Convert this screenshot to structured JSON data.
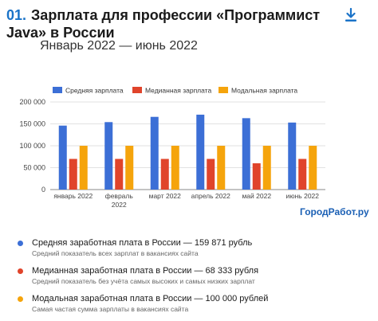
{
  "header": {
    "number": "01.",
    "title": "Зарплата для профессии «Программист Java» в России",
    "subtitle": "Январь 2022 — июнь 2022"
  },
  "icons": {
    "download": "download-icon"
  },
  "chart_data": {
    "type": "bar",
    "categories": [
      "январь 2022",
      "февраль 2022",
      "март 2022",
      "апрель 2022",
      "май 2022",
      "июнь 2022"
    ],
    "series": [
      {
        "name": "Средняя зарплата",
        "color": "#3c6fd6",
        "values": [
          146000,
          154000,
          166000,
          171000,
          163000,
          153000
        ]
      },
      {
        "name": "Медианная зарплата",
        "color": "#e0442b",
        "values": [
          70000,
          70000,
          70000,
          70000,
          60000,
          70000
        ]
      },
      {
        "name": "Модальная зарплата",
        "color": "#f5a40c",
        "values": [
          100000,
          100000,
          100000,
          100000,
          100000,
          100000
        ]
      }
    ],
    "yticks": [
      "0",
      "50 000",
      "100 000",
      "150 000",
      "200 000"
    ],
    "ylim": [
      0,
      200000
    ],
    "grid": true,
    "legend": "top"
  },
  "brand": "ГородРабот.ру",
  "stats": [
    {
      "main": "Средняя заработная плата в России — 159 871 рубль",
      "sub": "Средний показатель всех зарплат в вакансиях сайта",
      "color": "#3c6fd6"
    },
    {
      "main": "Медианная заработная плата в России — 68 333 рубля",
      "sub": "Средний показатель без учёта самых высоких и самых низких зарплат",
      "color": "#e0442b"
    },
    {
      "main": "Модальная заработная плата в России — 100 000 рублей",
      "sub": "Самая частая сумма зарплаты в вакансиях сайта",
      "color": "#f5a40c"
    }
  ]
}
